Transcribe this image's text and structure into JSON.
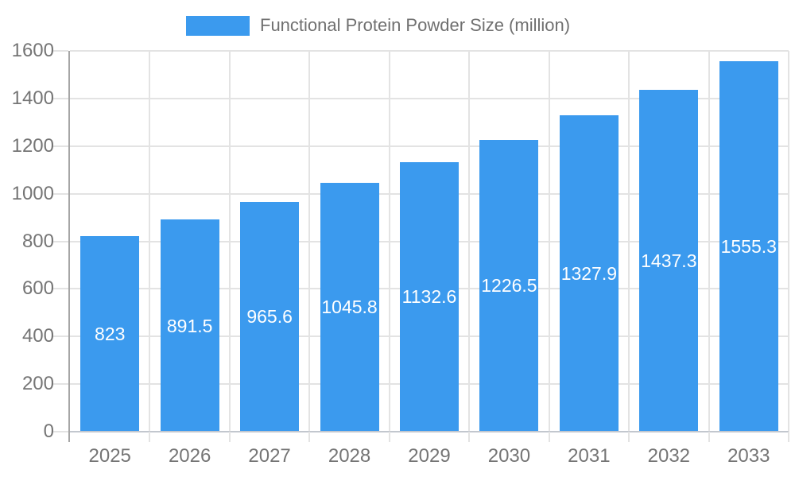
{
  "legend": {
    "label": "Functional Protein Powder Size (million)"
  },
  "chart_data": {
    "type": "bar",
    "title": "",
    "xlabel": "",
    "ylabel": "",
    "legend_label": "Functional Protein Powder Size (million)",
    "legend_position": "top",
    "grid": true,
    "categories": [
      "2025",
      "2026",
      "2027",
      "2028",
      "2029",
      "2030",
      "2031",
      "2032",
      "2033"
    ],
    "values": [
      823,
      891.5,
      965.6,
      1045.8,
      1132.6,
      1226.5,
      1327.9,
      1437.3,
      1555.3
    ],
    "value_labels": [
      "823",
      "891.5",
      "965.6",
      "1045.8",
      "1132.6",
      "1226.5",
      "1327.9",
      "1437.3",
      "1555.3"
    ],
    "ylim": [
      0,
      1600
    ],
    "ytick_step": 200,
    "yticks": [
      "0",
      "200",
      "400",
      "600",
      "800",
      "1000",
      "1200",
      "1400",
      "1600"
    ],
    "bar_color": "#3B9AEE"
  },
  "colors": {
    "bar": "#3B9AEE",
    "grid": "#E3E3E3",
    "y_axis_line": "#A6A6A6",
    "x_axis_line": "#C2C7CE",
    "tick_label_text": "#757575",
    "legend_text": "#707070",
    "value_label_text": "#FFFFFF",
    "background": "#FFFFFF"
  }
}
